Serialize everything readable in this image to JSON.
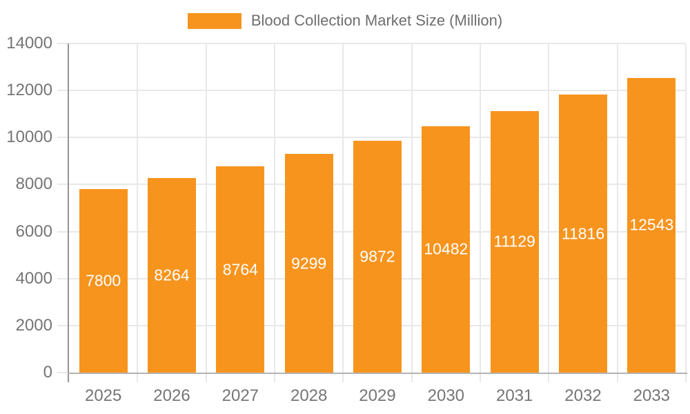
{
  "legend": {
    "swatch_color": "#F7941E"
  },
  "chart_data": {
    "type": "bar",
    "title": "Blood Collection Market Size (Million)",
    "categories": [
      "2025",
      "2026",
      "2027",
      "2028",
      "2029",
      "2030",
      "2031",
      "2032",
      "2033"
    ],
    "values": [
      7800,
      8264,
      8764,
      9299,
      9872,
      10482,
      11129,
      11816,
      12543
    ],
    "xlabel": "",
    "ylabel": "",
    "ylim": [
      0,
      14000
    ],
    "yticks": [
      0,
      2000,
      4000,
      6000,
      8000,
      10000,
      12000,
      14000
    ],
    "grid": true,
    "legend_position": "top-center",
    "value_labels": "inside-center",
    "colors": {
      "bar": "#F7941E",
      "grid": "#E8E8E8",
      "y_axis_line": "#949494",
      "x_axis_line": "#B3B3B3",
      "tick_text": "#757575",
      "title_text": "#6E6E6E",
      "value_text": "#FFFFFF"
    }
  }
}
